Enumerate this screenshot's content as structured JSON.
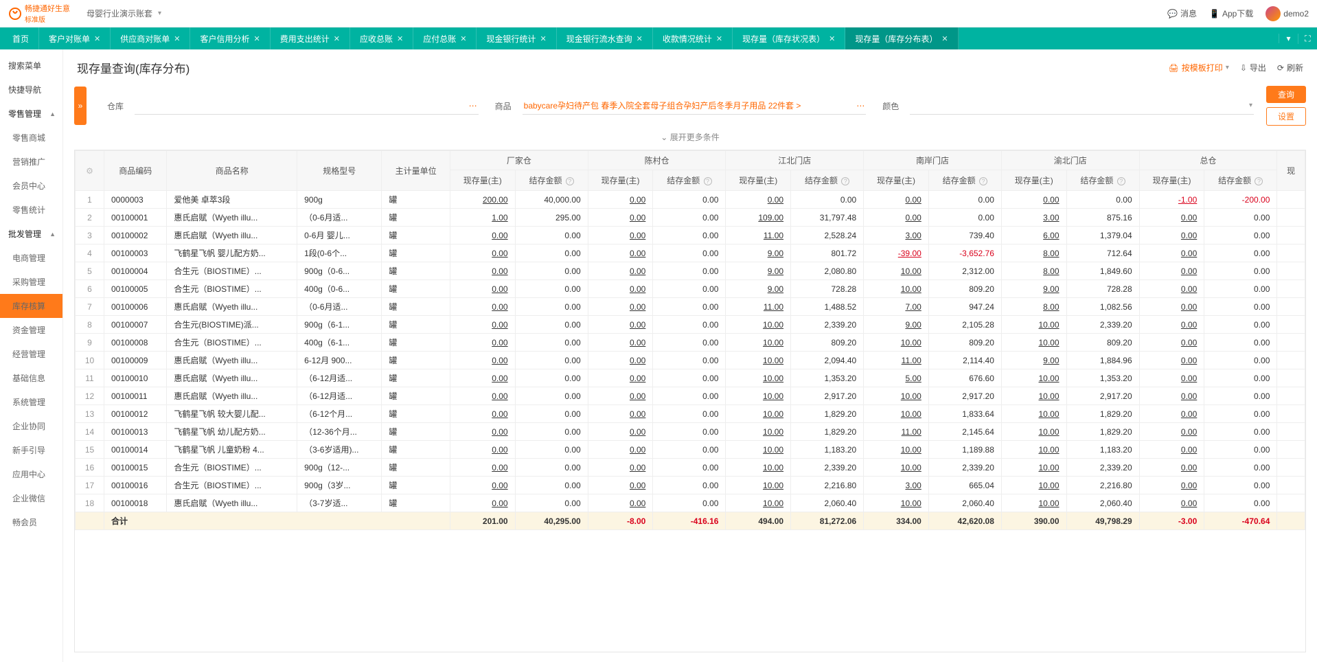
{
  "header": {
    "brand_main": "畅捷通好生意",
    "brand_sub": "标准版",
    "account": "母婴行业演示账套",
    "msg": "消息",
    "app": "App下载",
    "user": "demo2"
  },
  "tabs": {
    "items": [
      {
        "label": "首页",
        "close": false
      },
      {
        "label": "客户对账单",
        "close": true
      },
      {
        "label": "供应商对账单",
        "close": true
      },
      {
        "label": "客户信用分析",
        "close": true
      },
      {
        "label": "费用支出统计",
        "close": true
      },
      {
        "label": "应收总账",
        "close": true
      },
      {
        "label": "应付总账",
        "close": true
      },
      {
        "label": "现金银行统计",
        "close": true
      },
      {
        "label": "现金银行流水查询",
        "close": true
      },
      {
        "label": "收款情况统计",
        "close": true
      },
      {
        "label": "现存量（库存状况表）",
        "close": true
      },
      {
        "label": "现存量（库存分布表）",
        "close": true,
        "active": true
      }
    ]
  },
  "side": {
    "top": [
      "搜索菜单",
      "快捷导航"
    ],
    "sections": [
      {
        "label": "零售管理",
        "open": true,
        "children": [
          "零售商城",
          "营销推广",
          "会员中心",
          "零售统计"
        ]
      },
      {
        "label": "批发管理",
        "open": true,
        "children": [
          "电商管理",
          "采购管理",
          "库存核算",
          "资金管理",
          "经营管理",
          "基础信息",
          "系统管理",
          "企业协同",
          "新手引导",
          "应用中心",
          "企业微信",
          "畅会员"
        ],
        "active": "库存核算"
      }
    ]
  },
  "page": {
    "title": "现存量查询(库存分布)",
    "print": "按模板打印",
    "export": "导出",
    "refresh": "刷新",
    "filter_wh": "仓库",
    "filter_prod": "商品",
    "filter_color": "颜色",
    "prod_value": "babycare孕妇待产包 春季入院全套母子组合孕妇产后冬季月子用品 22件套 >",
    "btn_query": "查询",
    "btn_set": "设置",
    "more": "展开更多条件"
  },
  "grid": {
    "fixed_cols": [
      "商品编码",
      "商品名称",
      "规格型号",
      "主计量单位"
    ],
    "groups": [
      "厂家仓",
      "陈村仓",
      "江北门店",
      "南岸门店",
      "渝北门店",
      "总仓"
    ],
    "sub_qty": "现存量(主)",
    "sub_amt": "结存金额",
    "extra": "现",
    "rows": [
      {
        "n": 1,
        "code": "0000003",
        "name": "爱他美 卓萃3段",
        "spec": "900g",
        "unit": "罐",
        "v": [
          "200.00",
          "40,000.00",
          "0.00",
          "0.00",
          "0.00",
          "0.00",
          "0.00",
          "0.00",
          "0.00",
          "0.00",
          "-1.00",
          "-200.00"
        ]
      },
      {
        "n": 2,
        "code": "00100001",
        "name": "惠氏启赋（Wyeth illu...",
        "spec": "（0-6月适...",
        "unit": "罐",
        "v": [
          "1.00",
          "295.00",
          "0.00",
          "0.00",
          "109.00",
          "31,797.48",
          "0.00",
          "0.00",
          "3.00",
          "875.16",
          "0.00",
          "0.00"
        ]
      },
      {
        "n": 3,
        "code": "00100002",
        "name": "惠氏启赋（Wyeth illu...",
        "spec": "0-6月 婴儿...",
        "unit": "罐",
        "v": [
          "0.00",
          "0.00",
          "0.00",
          "0.00",
          "11.00",
          "2,528.24",
          "3.00",
          "739.40",
          "6.00",
          "1,379.04",
          "0.00",
          "0.00"
        ]
      },
      {
        "n": 4,
        "code": "00100003",
        "name": "飞鹤星飞帆 婴儿配方奶...",
        "spec": "1段(0-6个...",
        "unit": "罐",
        "v": [
          "0.00",
          "0.00",
          "0.00",
          "0.00",
          "9.00",
          "801.72",
          "-39.00",
          "-3,652.76",
          "8.00",
          "712.64",
          "0.00",
          "0.00"
        ]
      },
      {
        "n": 5,
        "code": "00100004",
        "name": "合生元（BIOSTIME）...",
        "spec": "900g（0-6...",
        "unit": "罐",
        "v": [
          "0.00",
          "0.00",
          "0.00",
          "0.00",
          "9.00",
          "2,080.80",
          "10.00",
          "2,312.00",
          "8.00",
          "1,849.60",
          "0.00",
          "0.00"
        ]
      },
      {
        "n": 6,
        "code": "00100005",
        "name": "合生元（BIOSTIME）...",
        "spec": "400g（0-6...",
        "unit": "罐",
        "v": [
          "0.00",
          "0.00",
          "0.00",
          "0.00",
          "9.00",
          "728.28",
          "10.00",
          "809.20",
          "9.00",
          "728.28",
          "0.00",
          "0.00"
        ]
      },
      {
        "n": 7,
        "code": "00100006",
        "name": "惠氏启赋（Wyeth illu...",
        "spec": "（0-6月适...",
        "unit": "罐",
        "v": [
          "0.00",
          "0.00",
          "0.00",
          "0.00",
          "11.00",
          "1,488.52",
          "7.00",
          "947.24",
          "8.00",
          "1,082.56",
          "0.00",
          "0.00"
        ]
      },
      {
        "n": 8,
        "code": "00100007",
        "name": "合生元(BIOSTIME)派...",
        "spec": "900g（6-1...",
        "unit": "罐",
        "v": [
          "0.00",
          "0.00",
          "0.00",
          "0.00",
          "10.00",
          "2,339.20",
          "9.00",
          "2,105.28",
          "10.00",
          "2,339.20",
          "0.00",
          "0.00"
        ]
      },
      {
        "n": 9,
        "code": "00100008",
        "name": "合生元（BIOSTIME）...",
        "spec": "400g（6-1...",
        "unit": "罐",
        "v": [
          "0.00",
          "0.00",
          "0.00",
          "0.00",
          "10.00",
          "809.20",
          "10.00",
          "809.20",
          "10.00",
          "809.20",
          "0.00",
          "0.00"
        ]
      },
      {
        "n": 10,
        "code": "00100009",
        "name": "惠氏启赋（Wyeth illu...",
        "spec": "6-12月 900...",
        "unit": "罐",
        "v": [
          "0.00",
          "0.00",
          "0.00",
          "0.00",
          "10.00",
          "2,094.40",
          "11.00",
          "2,114.40",
          "9.00",
          "1,884.96",
          "0.00",
          "0.00"
        ]
      },
      {
        "n": 11,
        "code": "00100010",
        "name": "惠氏启赋（Wyeth illu...",
        "spec": "（6-12月适...",
        "unit": "罐",
        "v": [
          "0.00",
          "0.00",
          "0.00",
          "0.00",
          "10.00",
          "1,353.20",
          "5.00",
          "676.60",
          "10.00",
          "1,353.20",
          "0.00",
          "0.00"
        ]
      },
      {
        "n": 12,
        "code": "00100011",
        "name": "惠氏启赋（Wyeth illu...",
        "spec": "（6-12月适...",
        "unit": "罐",
        "v": [
          "0.00",
          "0.00",
          "0.00",
          "0.00",
          "10.00",
          "2,917.20",
          "10.00",
          "2,917.20",
          "10.00",
          "2,917.20",
          "0.00",
          "0.00"
        ]
      },
      {
        "n": 13,
        "code": "00100012",
        "name": "飞鹤星飞帆 较大婴儿配...",
        "spec": "（6-12个月...",
        "unit": "罐",
        "v": [
          "0.00",
          "0.00",
          "0.00",
          "0.00",
          "10.00",
          "1,829.20",
          "10.00",
          "1,833.64",
          "10.00",
          "1,829.20",
          "0.00",
          "0.00"
        ]
      },
      {
        "n": 14,
        "code": "00100013",
        "name": "飞鹤星飞帆 幼儿配方奶...",
        "spec": "（12-36个月...",
        "unit": "罐",
        "v": [
          "0.00",
          "0.00",
          "0.00",
          "0.00",
          "10.00",
          "1,829.20",
          "11.00",
          "2,145.64",
          "10.00",
          "1,829.20",
          "0.00",
          "0.00"
        ]
      },
      {
        "n": 15,
        "code": "00100014",
        "name": "飞鹤星飞帆 儿童奶粉 4...",
        "spec": "（3-6岁适用)...",
        "unit": "罐",
        "v": [
          "0.00",
          "0.00",
          "0.00",
          "0.00",
          "10.00",
          "1,183.20",
          "10.00",
          "1,189.88",
          "10.00",
          "1,183.20",
          "0.00",
          "0.00"
        ]
      },
      {
        "n": 16,
        "code": "00100015",
        "name": "合生元（BIOSTIME）...",
        "spec": "900g（12-...",
        "unit": "罐",
        "v": [
          "0.00",
          "0.00",
          "0.00",
          "0.00",
          "10.00",
          "2,339.20",
          "10.00",
          "2,339.20",
          "10.00",
          "2,339.20",
          "0.00",
          "0.00"
        ]
      },
      {
        "n": 17,
        "code": "00100016",
        "name": "合生元（BIOSTIME）...",
        "spec": "900g（3岁...",
        "unit": "罐",
        "v": [
          "0.00",
          "0.00",
          "0.00",
          "0.00",
          "10.00",
          "2,216.80",
          "3.00",
          "665.04",
          "10.00",
          "2,216.80",
          "0.00",
          "0.00"
        ]
      },
      {
        "n": 18,
        "code": "00100018",
        "name": "惠氏启赋（Wyeth illu...",
        "spec": "（3-7岁适...",
        "unit": "罐",
        "v": [
          "0.00",
          "0.00",
          "0.00",
          "0.00",
          "10.00",
          "2,060.40",
          "10.00",
          "2,060.40",
          "10.00",
          "2,060.40",
          "0.00",
          "0.00"
        ]
      }
    ],
    "footer": {
      "label": "合计",
      "v": [
        "201.00",
        "40,295.00",
        "-8.00",
        "-416.16",
        "494.00",
        "81,272.06",
        "334.00",
        "42,620.08",
        "390.00",
        "49,798.29",
        "-3.00",
        "-470.64"
      ]
    }
  }
}
